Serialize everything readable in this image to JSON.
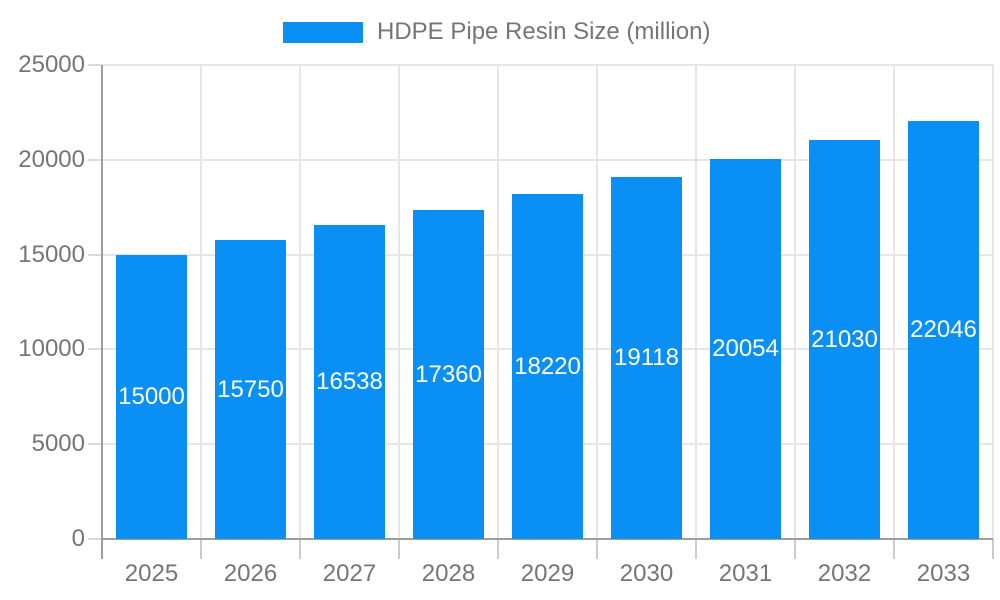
{
  "legend": {
    "label": "HDPE Pipe Resin Size (million)"
  },
  "colors": {
    "bar": "#0a90f5",
    "bar_label": "#ffffff",
    "axis_text": "#757575",
    "gridline": "#e6e6e6",
    "axis_line": "#9e9e9e",
    "tick": "#cccccc",
    "background": "#ffffff"
  },
  "chart_data": {
    "type": "bar",
    "title": "",
    "series_name": "HDPE Pipe Resin Size (million)",
    "categories": [
      "2025",
      "2026",
      "2027",
      "2028",
      "2029",
      "2030",
      "2031",
      "2032",
      "2033"
    ],
    "values": [
      15000,
      15750,
      16538,
      17360,
      18220,
      19118,
      20054,
      21030,
      22046
    ],
    "bar_labels": [
      "15000",
      "15750",
      "16538",
      "17360",
      "18220",
      "19118",
      "20054",
      "21030",
      "22046"
    ],
    "xlabel": "",
    "ylabel": "",
    "ylim": [
      0,
      25000
    ],
    "yticks": [
      0,
      5000,
      10000,
      15000,
      20000,
      25000
    ],
    "ytick_labels": [
      "0",
      "5000",
      "10000",
      "15000",
      "20000",
      "25000"
    ],
    "grid": true,
    "legend_position": "top",
    "bar_labels_visible": true
  }
}
